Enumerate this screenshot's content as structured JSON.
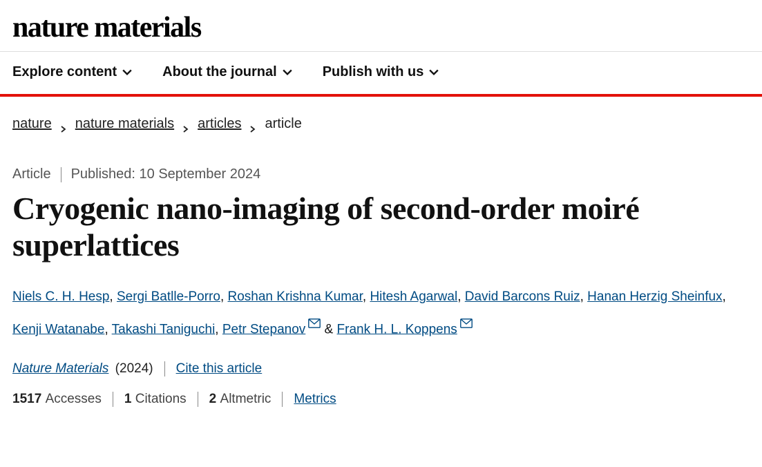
{
  "brand": "nature materials",
  "nav": {
    "items": [
      {
        "label": "Explore content"
      },
      {
        "label": "About the journal"
      },
      {
        "label": "Publish with us"
      }
    ]
  },
  "breadcrumb": {
    "items": [
      "nature",
      "nature materials",
      "articles"
    ],
    "current": "article"
  },
  "meta": {
    "type": "Article",
    "published_label": "Published: 10 September 2024"
  },
  "title": "Cryogenic nano-imaging of second-order moiré superlattices",
  "authors": [
    {
      "name": "Niels C. H. Hesp",
      "mail": false
    },
    {
      "name": "Sergi Batlle-Porro",
      "mail": false
    },
    {
      "name": "Roshan Krishna Kumar",
      "mail": false
    },
    {
      "name": "Hitesh Agarwal",
      "mail": false
    },
    {
      "name": "David Barcons Ruiz",
      "mail": false
    },
    {
      "name": "Hanan Herzig Sheinfux",
      "mail": false
    },
    {
      "name": "Kenji Watanabe",
      "mail": false
    },
    {
      "name": "Takashi Taniguchi",
      "mail": false
    },
    {
      "name": "Petr Stepanov",
      "mail": true
    },
    {
      "name": "Frank H. L. Koppens",
      "mail": true
    }
  ],
  "citation": {
    "journal": "Nature Materials",
    "year": "(2024)",
    "cite_label": "Cite this article"
  },
  "metrics": {
    "accesses_n": "1517",
    "accesses_l": "Accesses",
    "citations_n": "1",
    "citations_l": "Citations",
    "altmetric_n": "2",
    "altmetric_l": "Altmetric",
    "metrics_link": "Metrics"
  },
  "colors": {
    "link": "#004b83",
    "accent": "#e3120b"
  }
}
